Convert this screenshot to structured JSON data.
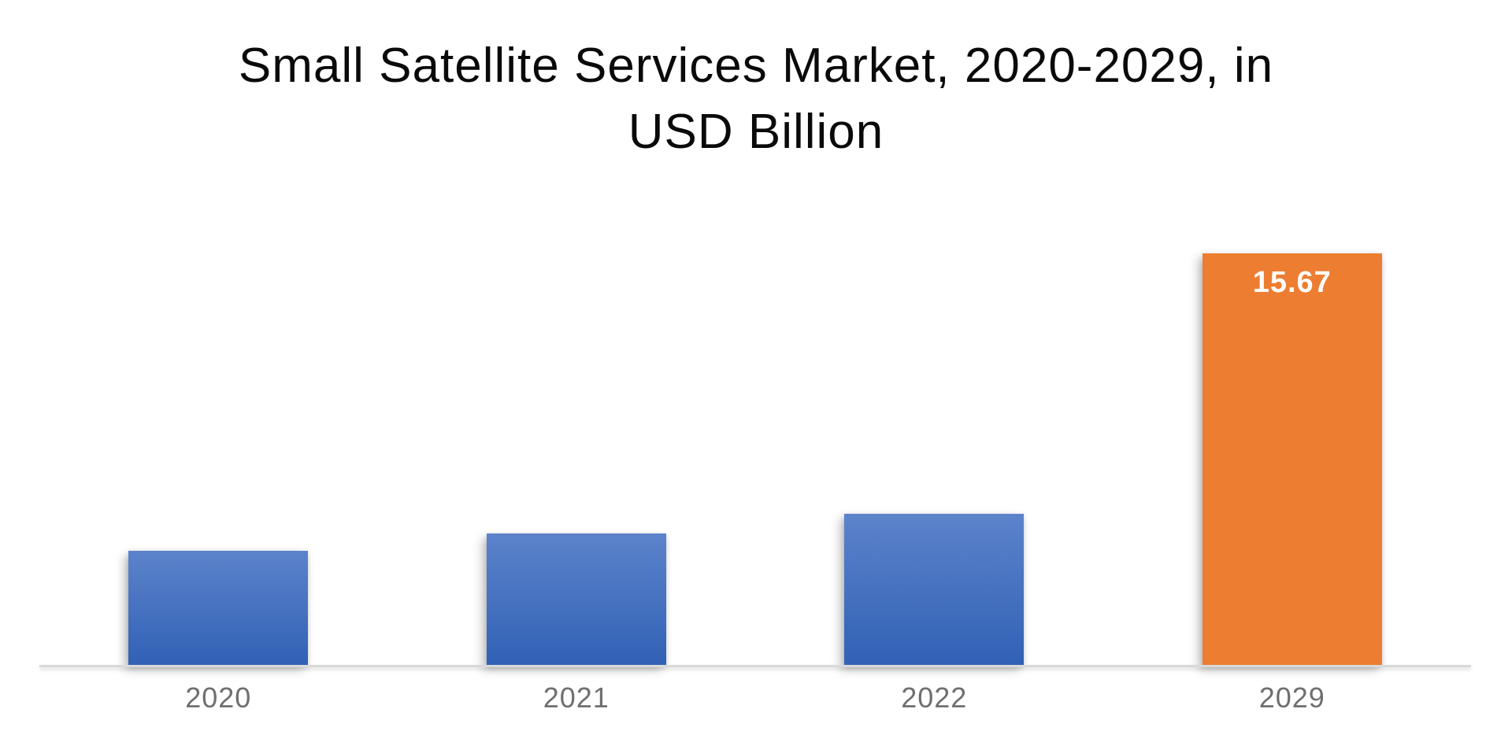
{
  "header": {
    "title_line1": "Small Satellite Services Market, 2020-2029, in",
    "title_line2": "USD Billion"
  },
  "colors": {
    "background": "#FFFFFF",
    "title_text": "#0A0A0A",
    "axis_line": "#D9D9D9",
    "axis_label_text": "#6F6F6F",
    "data_label_text": "#FFFFFF",
    "bar_blue_top": "#5C83CB",
    "bar_blue_bottom": "#3161B5",
    "bar_orange": "#ED7D31"
  },
  "chart_data": {
    "type": "bar",
    "title": "Small Satellite Services Market, 2020-2029, in USD Billion",
    "categories": [
      "2020",
      "2021",
      "2022",
      "2029"
    ],
    "values": [
      4.34,
      5.0,
      5.75,
      15.67
    ],
    "value_labels": [
      "",
      "",
      "",
      "15.67"
    ],
    "bar_colors": [
      "blue",
      "blue",
      "blue",
      "orange"
    ],
    "xlabel": "",
    "ylabel": "",
    "ylim": [
      0,
      16.5
    ],
    "grid": false,
    "legend_position": "none",
    "y_axis_visible": false
  }
}
